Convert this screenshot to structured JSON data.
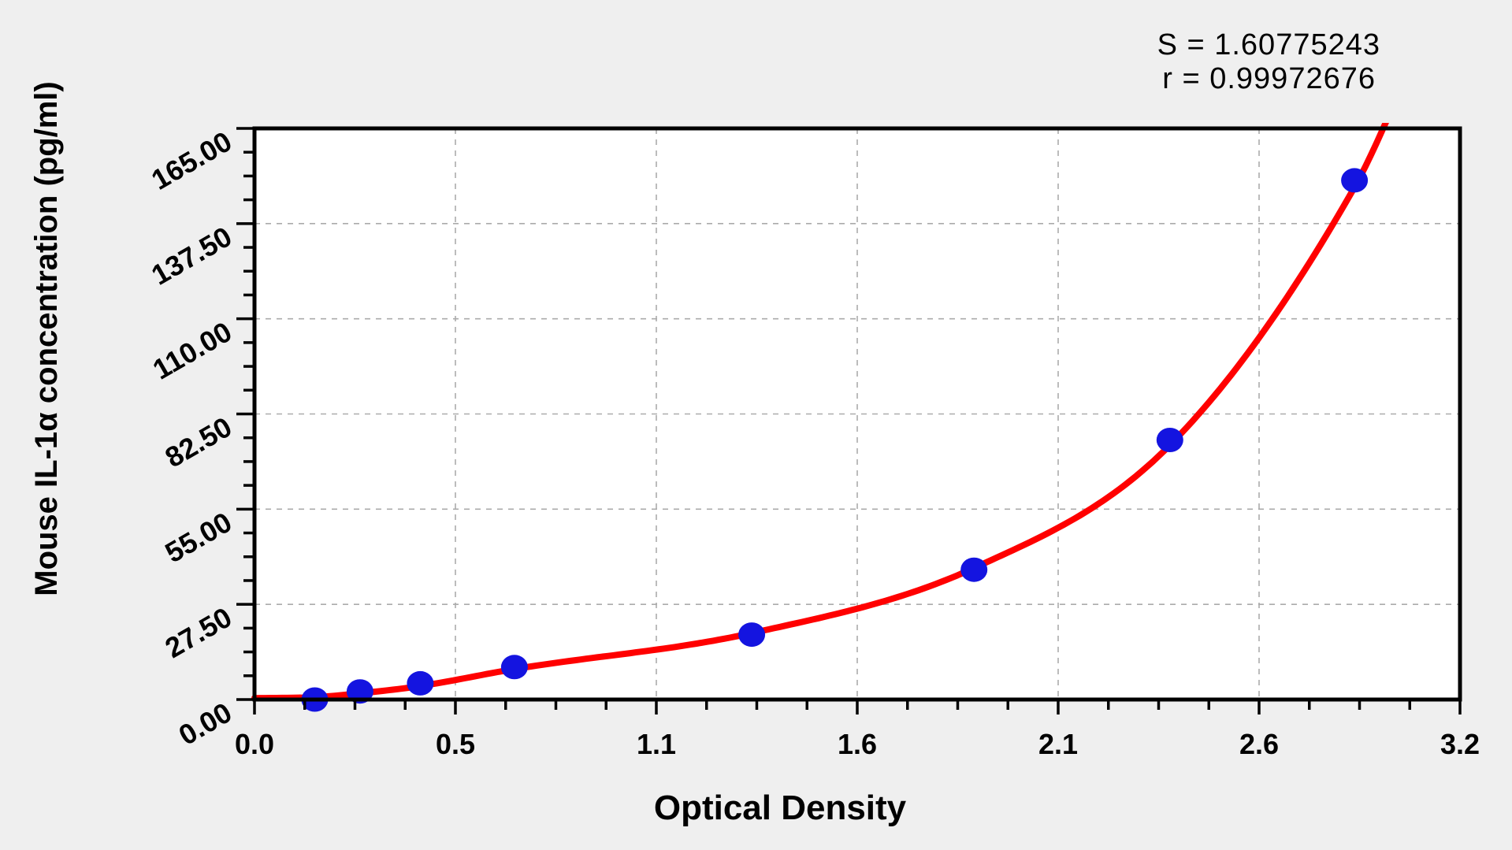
{
  "chart_data": {
    "type": "scatter",
    "title": "",
    "xlabel": "Optical Density",
    "ylabel": "Mouse IL-1α concentration (pg/ml)",
    "stats": {
      "S_label": "S = 1.60775243",
      "r_label": "r = 0.99972676",
      "S": 1.60775243,
      "r": 0.99972676
    },
    "x_tick_labels": [
      "0.0",
      "0.5",
      "1.1",
      "1.6",
      "2.1",
      "2.6",
      "3.2"
    ],
    "y_tick_labels": [
      "0.00",
      "27.50",
      "55.00",
      "82.50",
      "110.00",
      "137.50",
      "165.00"
    ],
    "xlim": [
      0,
      3.2
    ],
    "ylim": [
      0,
      165
    ],
    "minor_ticks_per_major_interval": 3,
    "grid": "dashed-major",
    "legend": "none",
    "points": [
      {
        "od": 0.16,
        "conc": 0
      },
      {
        "od": 0.28,
        "conc": 2.34
      },
      {
        "od": 0.44,
        "conc": 4.69
      },
      {
        "od": 0.69,
        "conc": 9.38
      },
      {
        "od": 1.32,
        "conc": 18.75
      },
      {
        "od": 1.91,
        "conc": 37.5
      },
      {
        "od": 2.43,
        "conc": 75
      },
      {
        "od": 2.92,
        "conc": 150
      }
    ],
    "fit_curve_anchors": [
      [
        0,
        0.4
      ],
      [
        0.16,
        0.7
      ],
      [
        0.28,
        1.8
      ],
      [
        0.44,
        3.9
      ],
      [
        0.69,
        8.8
      ],
      [
        1.32,
        19.2
      ],
      [
        1.91,
        38
      ],
      [
        2.43,
        73.5
      ],
      [
        2.92,
        148
      ],
      [
        3.05,
        178
      ]
    ],
    "colors": {
      "point": "#1414e0",
      "curve": "#ff0000",
      "background": "#efefef",
      "plot_background": "#ffffff",
      "grid": "#ababab",
      "axis": "#000000"
    }
  }
}
